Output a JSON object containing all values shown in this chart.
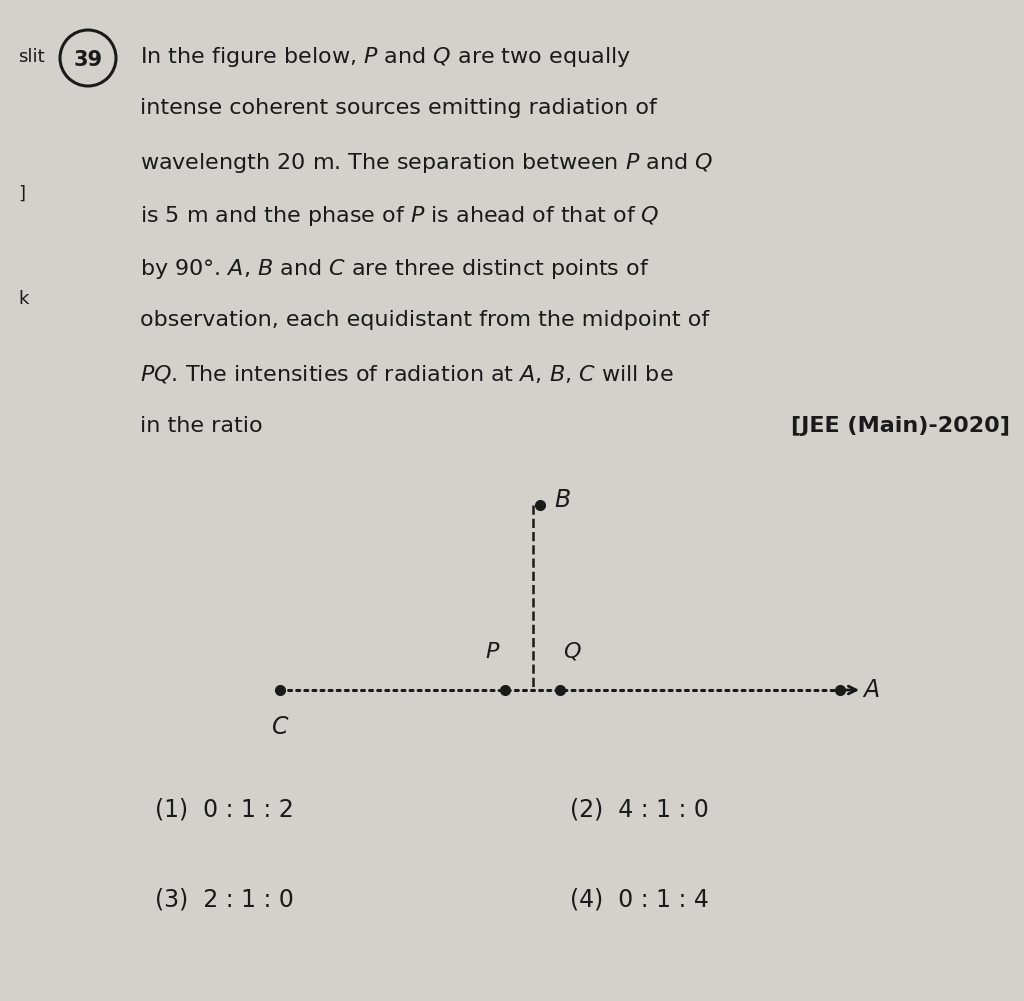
{
  "background_color": "#d4d1cc",
  "text_color": "#1a1a1a",
  "question_number": "39",
  "question_text_lines": [
    "In the figure below, $P$ and $Q$ are two equally",
    "intense coherent sources emitting radiation of",
    "wavelength 20 m. The separation between $P$ and $Q$",
    "is 5 m and the phase of $P$ is ahead of that of $Q$",
    "by 90°. $A$, $B$ and $C$ are three distinct points of",
    "observation, each equidistant from the midpoint of",
    "$PQ$. The intensities of radiation at $A$, $B$, $C$ will be",
    "in the ratio"
  ],
  "journal_tag": "[JEE (Main)-2020]",
  "side_label_top": "slit",
  "side_label_mid": "]",
  "side_label_bot": "k",
  "options": [
    "(1)  0 : 1 : 2",
    "(2)  4 : 1 : 0",
    "(3)  2 : 1 : 0",
    "(4)  0 : 1 : 4"
  ],
  "dot_size": 7,
  "line_color": "#1a1a1a"
}
